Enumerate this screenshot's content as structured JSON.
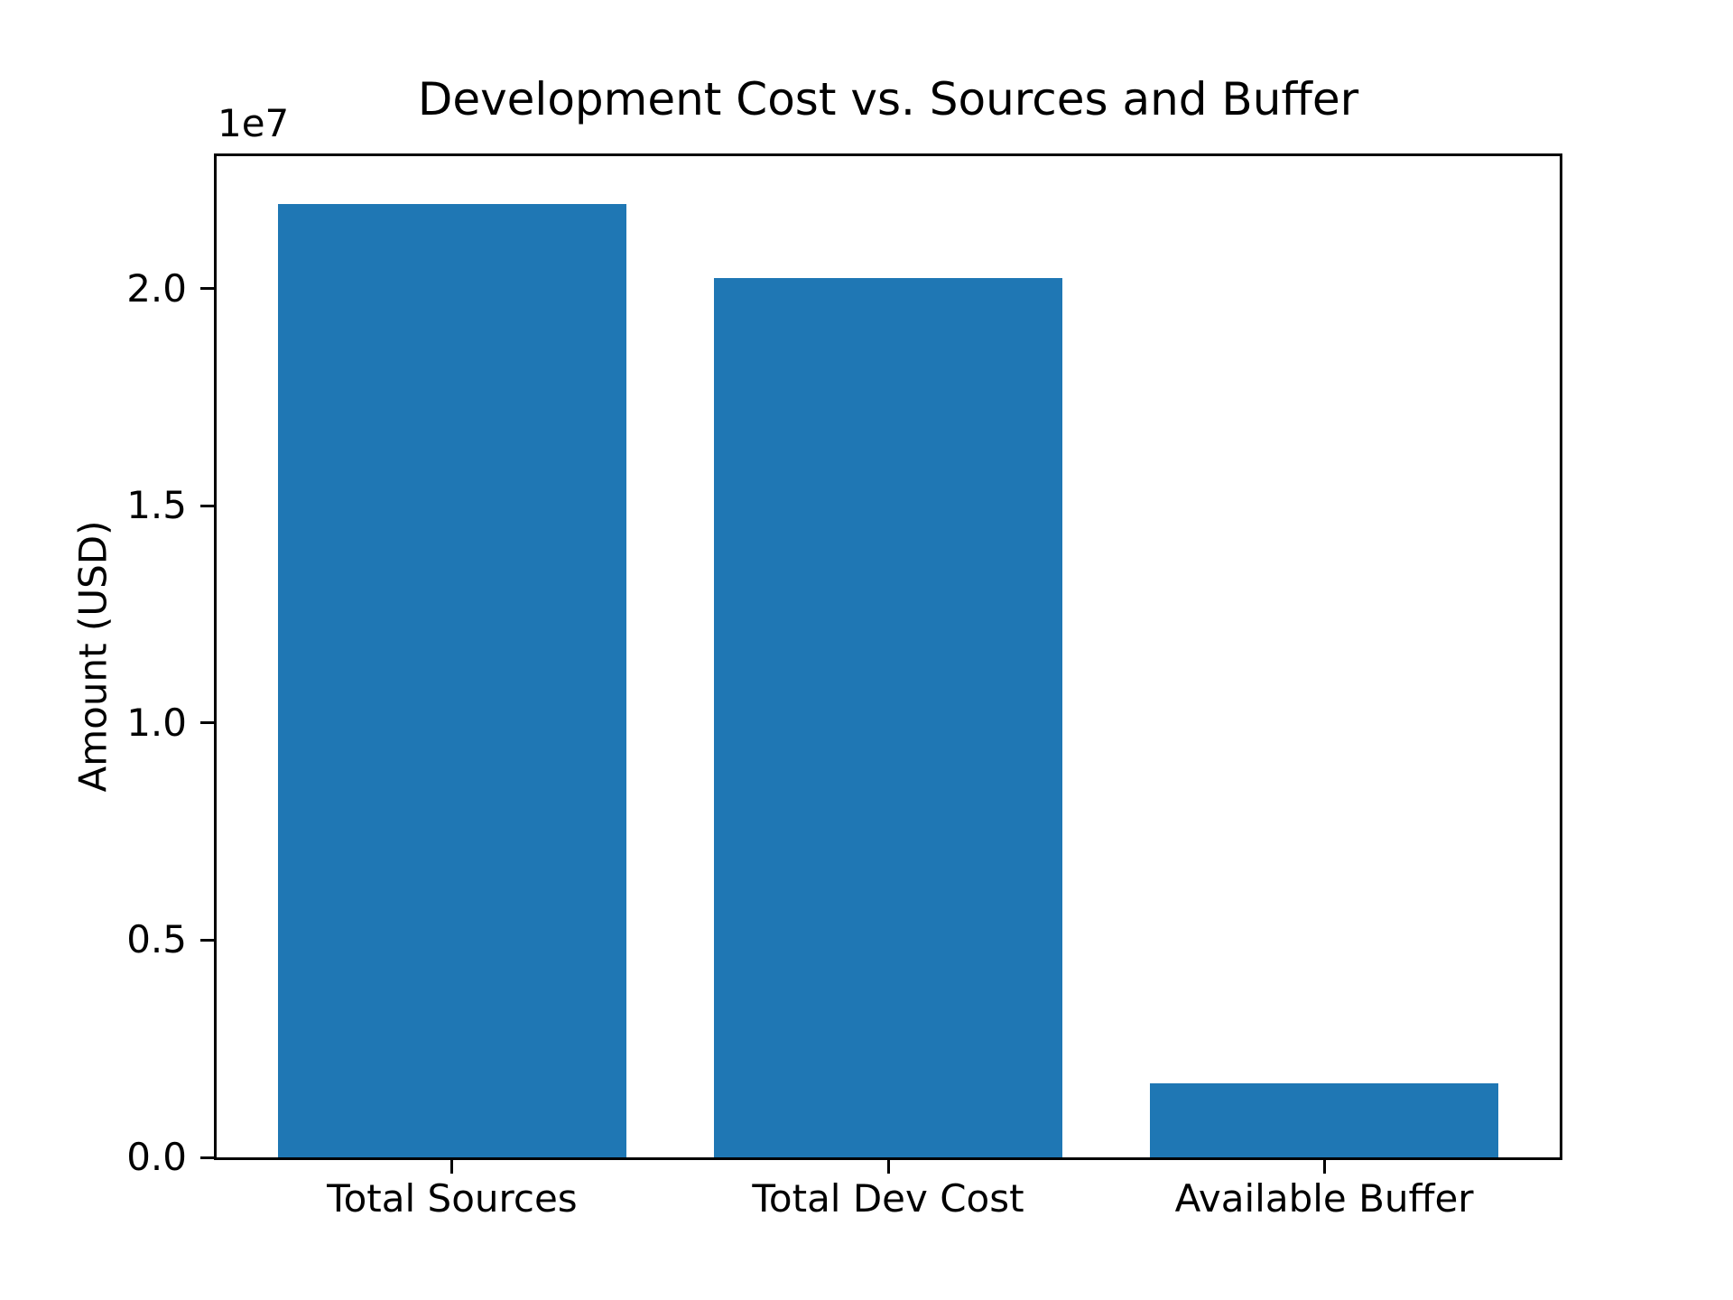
{
  "chart_data": {
    "type": "bar",
    "title": "Development Cost vs. Sources and Buffer",
    "xlabel": "",
    "ylabel": "Amount (USD)",
    "offset_text": "1e7",
    "categories": [
      "Total Sources",
      "Total Dev Cost",
      "Available Buffer"
    ],
    "values": [
      21950000,
      20250000,
      1700000
    ],
    "yticks": [
      0,
      5000000,
      10000000,
      15000000,
      20000000
    ],
    "ytick_labels": [
      "0.0",
      "0.5",
      "1.0",
      "1.5",
      "2.0"
    ],
    "ylim": [
      0,
      23050000
    ],
    "xlim": [
      -0.54,
      2.54
    ],
    "bar_width": 0.8,
    "bar_color": "#1f77b4",
    "axis_color": "#000000",
    "background_color": "#ffffff",
    "grid": false,
    "legend": false
  }
}
